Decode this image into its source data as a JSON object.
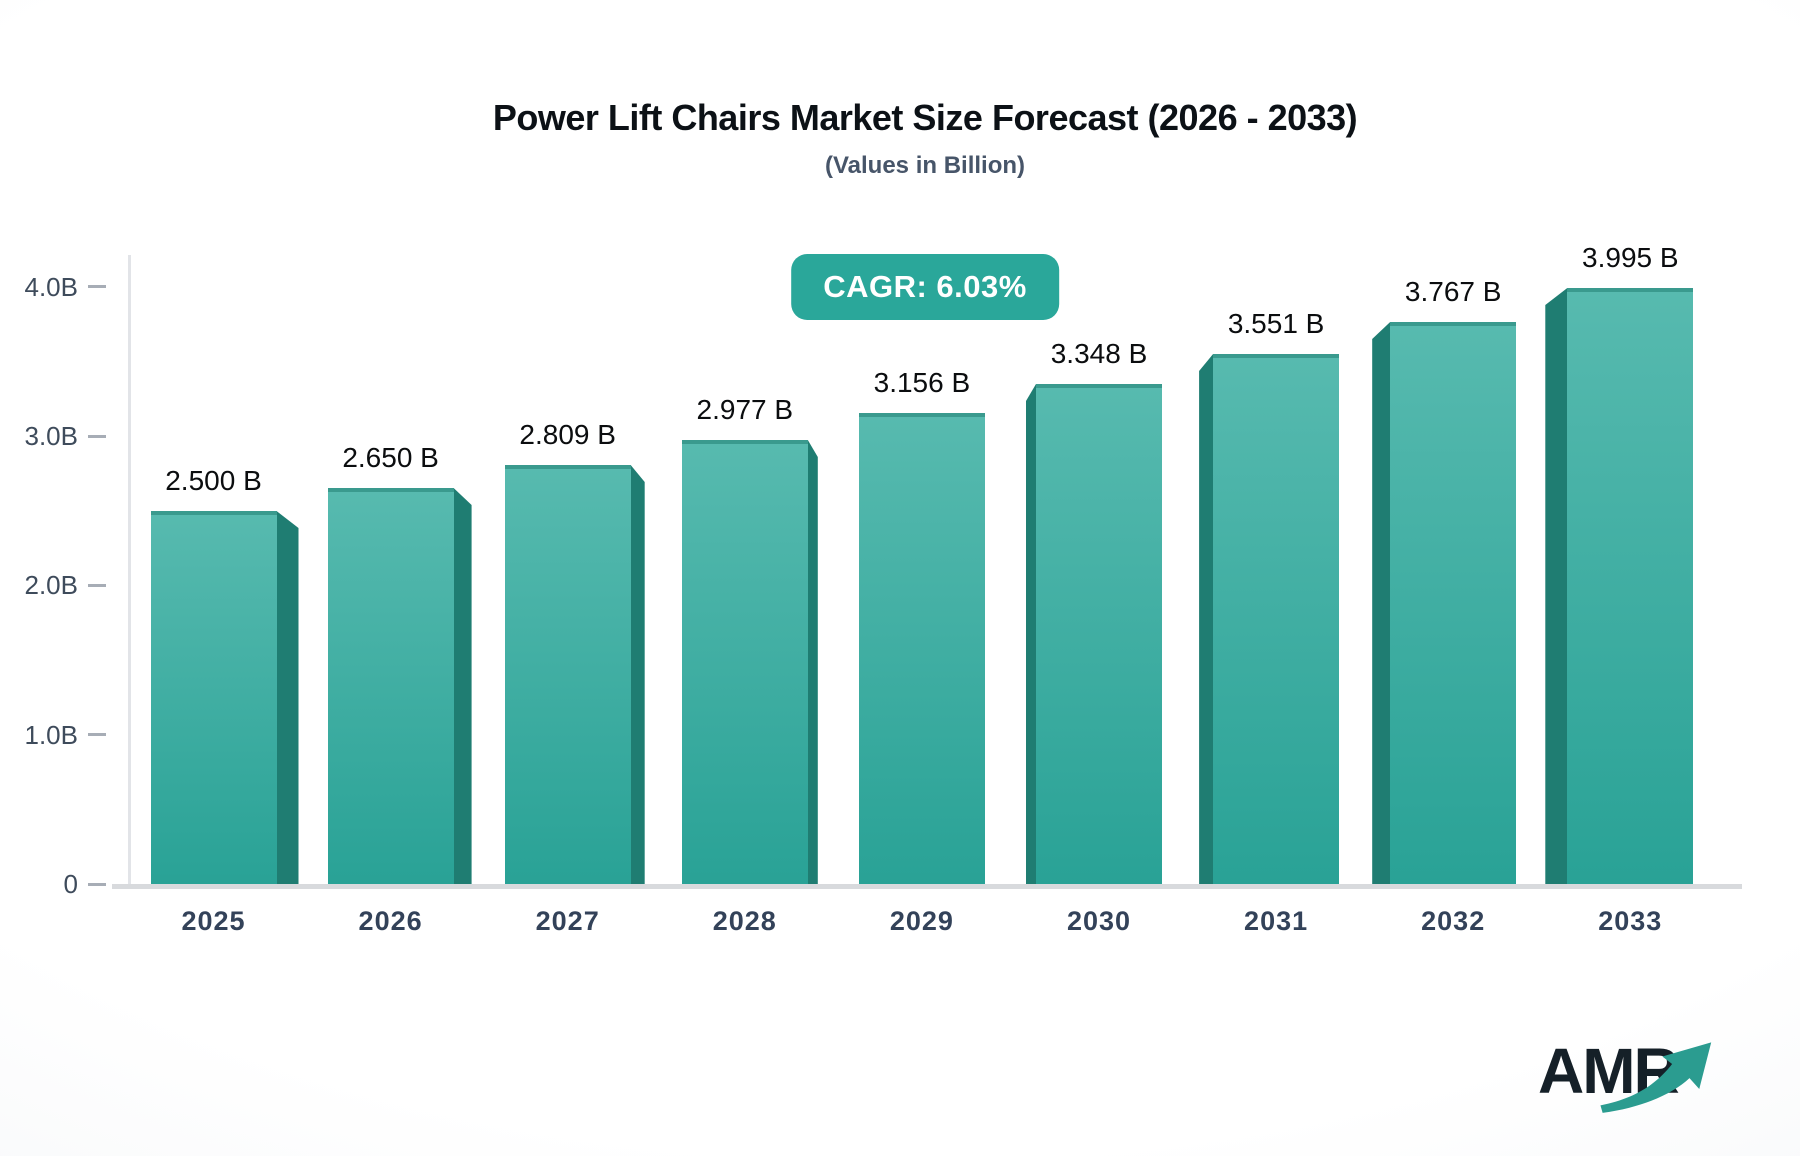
{
  "header": {
    "title": "Power Lift Chairs Market Size Forecast (2026 - 2033)",
    "subtitle": "(Values in Billion)",
    "cagr_label": "CAGR: 6.03%"
  },
  "logo": {
    "text": "AMR",
    "arrow_icon": "growth-arrow-icon"
  },
  "chart_data": {
    "type": "bar",
    "style": "3d-perspective-bars",
    "title": "Power Lift Chairs Market Size Forecast (2026 - 2033)",
    "subtitle": "(Values in Billion)",
    "cagr": "6.03%",
    "categories": [
      "2025",
      "2026",
      "2027",
      "2028",
      "2029",
      "2030",
      "2031",
      "2032",
      "2033"
    ],
    "values": [
      2.5,
      2.65,
      2.809,
      2.977,
      3.156,
      3.348,
      3.551,
      3.767,
      3.995
    ],
    "bar_labels": [
      "2.500 B",
      "2.650 B",
      "2.809 B",
      "2.977 B",
      "3.156 B",
      "3.348 B",
      "3.551 B",
      "3.767 B",
      "3.995 B"
    ],
    "xlabel": "",
    "ylabel": "",
    "ylim": [
      0,
      4
    ],
    "y_ticks": [
      {
        "value": 0,
        "label": "0"
      },
      {
        "value": 1,
        "label": "1.0B"
      },
      {
        "value": 2,
        "label": "2.0B"
      },
      {
        "value": 3,
        "label": "3.0B"
      },
      {
        "value": 4,
        "label": "4.0B"
      }
    ],
    "grid": false,
    "legend": false
  },
  "colors": {
    "bar_face_top": "#57baaf",
    "bar_face_bottom": "#29a296",
    "bar_top_edge": "#3a9a8e",
    "bar_side": "#1f7d72",
    "badge_bg": "#2aa79a",
    "badge_text": "#ffffff",
    "title_text": "#0c1116",
    "subtitle_text": "#475569",
    "data_label_text": "#0b0d0f",
    "y_axis_label_text": "#3e4b5b",
    "x_axis_label_text": "#334259",
    "baseline": "#d8dadd",
    "axis_line": "#e2e4e8",
    "tick_dash": "#a7adb6",
    "logo_text": "#152028",
    "logo_arrow": "#2b9c90"
  }
}
